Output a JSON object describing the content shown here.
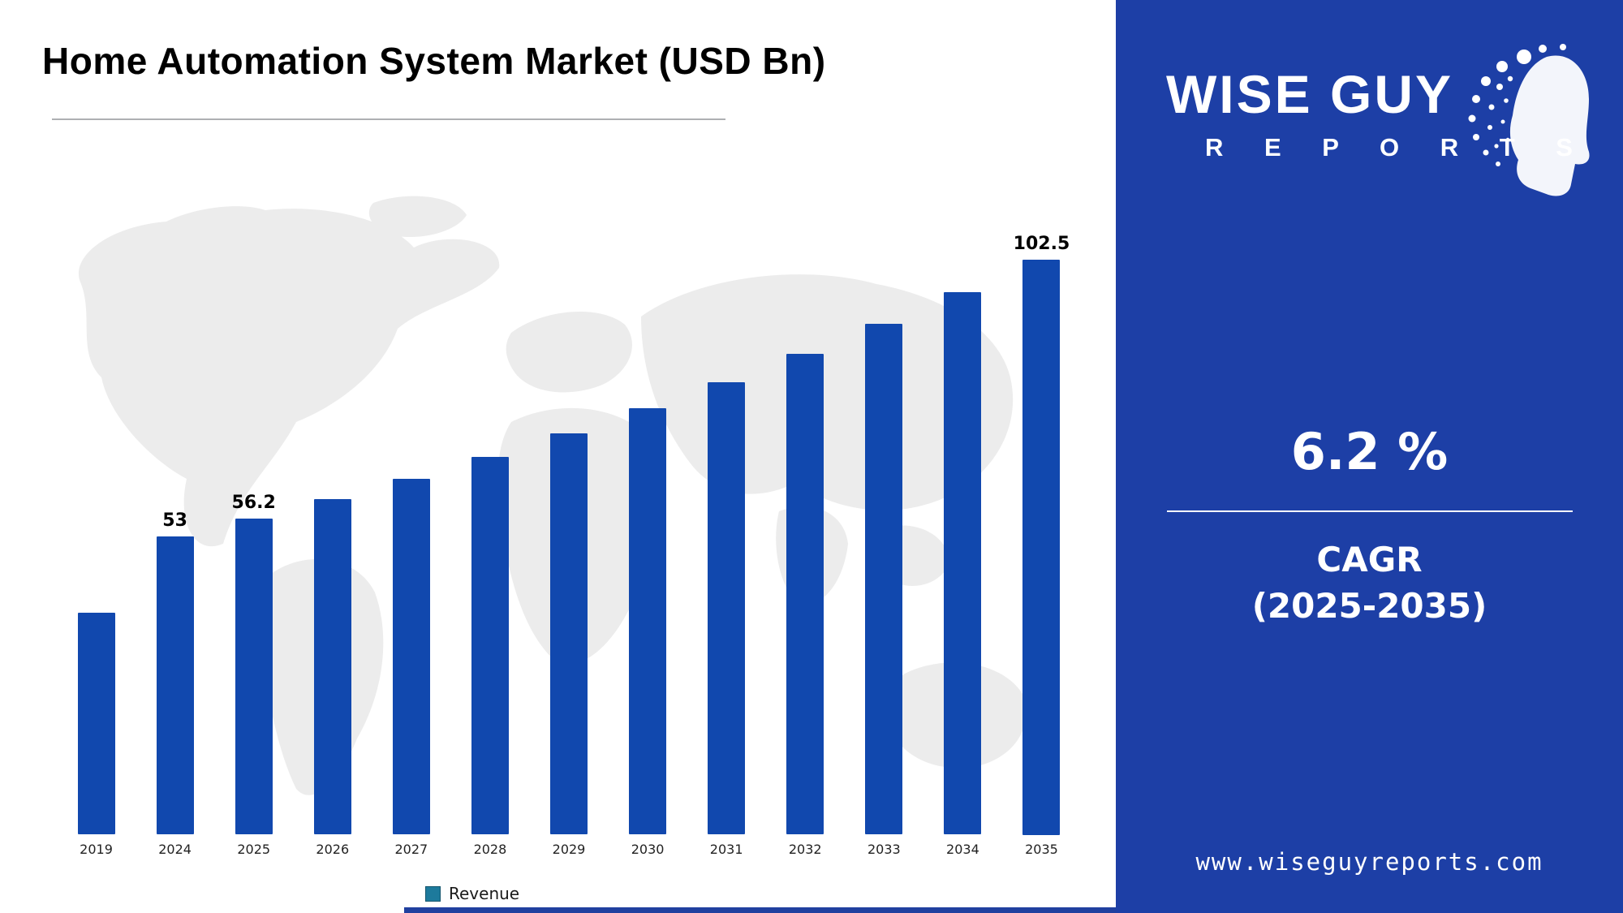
{
  "header": {
    "title": "Home Automation System Market (USD Bn)"
  },
  "chart_data": {
    "type": "bar",
    "title": "Home Automation System Market (USD Bn)",
    "xlabel": "",
    "ylabel": "",
    "ylim": [
      0,
      107
    ],
    "grid": false,
    "legend_position": "bottom",
    "legend": {
      "label": "Revenue",
      "color": "#1d7a9c"
    },
    "bar_color": "#1148ae",
    "categories": [
      "2019",
      "2024",
      "2025",
      "2026",
      "2027",
      "2028",
      "2029",
      "2030",
      "2031",
      "2032",
      "2033",
      "2034",
      "2035"
    ],
    "values": [
      39.5,
      53,
      56.2,
      59.7,
      63.4,
      67.3,
      71.5,
      75.9,
      80.6,
      85.6,
      90.9,
      96.6,
      102.5
    ],
    "bars": [
      {
        "year": "2019",
        "value": 39.5,
        "label": ""
      },
      {
        "year": "2024",
        "value": 53,
        "label": "53"
      },
      {
        "year": "2025",
        "value": 56.2,
        "label": "56.2"
      },
      {
        "year": "2026",
        "value": 59.7,
        "label": ""
      },
      {
        "year": "2027",
        "value": 63.4,
        "label": ""
      },
      {
        "year": "2028",
        "value": 67.3,
        "label": ""
      },
      {
        "year": "2029",
        "value": 71.5,
        "label": ""
      },
      {
        "year": "2030",
        "value": 75.9,
        "label": ""
      },
      {
        "year": "2031",
        "value": 80.6,
        "label": ""
      },
      {
        "year": "2032",
        "value": 85.6,
        "label": ""
      },
      {
        "year": "2033",
        "value": 90.9,
        "label": ""
      },
      {
        "year": "2034",
        "value": 96.6,
        "label": ""
      },
      {
        "year": "2035",
        "value": 102.5,
        "label": "102.5"
      }
    ]
  },
  "side_panel": {
    "background_color": "#1d3fa6",
    "brand_line1": "WISE GUY",
    "brand_line2": "R E P O R T S",
    "cagr_value": "6.2 %",
    "cagr_label1": "CAGR",
    "cagr_label2": "(2025-2035)",
    "website": "www.wiseguyreports.com"
  }
}
